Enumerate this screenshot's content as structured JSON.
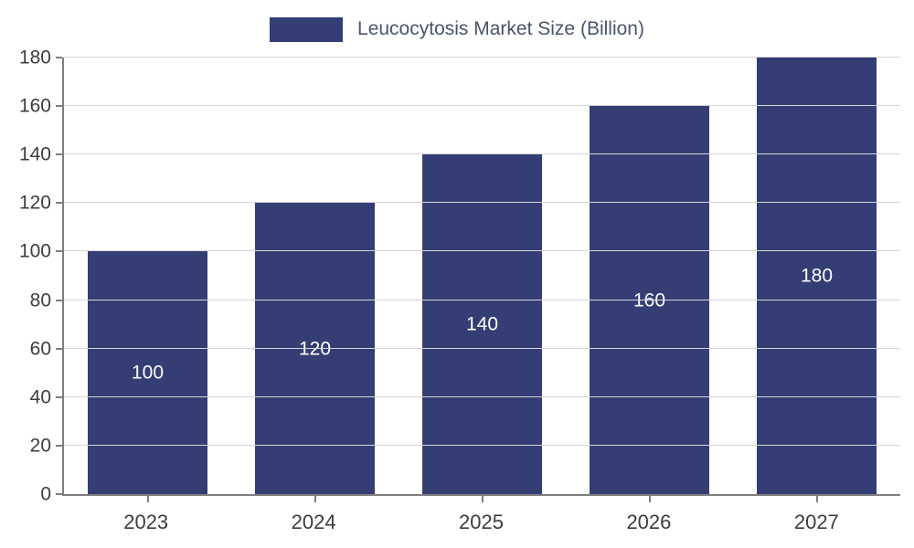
{
  "chart_data": {
    "type": "bar",
    "title": "Leucocytosis Market Size (Billion)",
    "categories": [
      "2023",
      "2024",
      "2025",
      "2026",
      "2027"
    ],
    "values": [
      100,
      120,
      140,
      160,
      180
    ],
    "value_labels": [
      "100",
      "120",
      "140",
      "160",
      "180"
    ],
    "xlabel": "",
    "ylabel": "",
    "ylim": [
      0,
      180
    ],
    "yticks": [
      0,
      20,
      40,
      60,
      80,
      100,
      120,
      140,
      160,
      180
    ],
    "grid": "horizontal",
    "legend_position": "top-center",
    "bar_color": "#343e75",
    "bar_label_color": "#ffffff",
    "gridline_color": "#d6d6d6",
    "axis_color": "#7f7f7f",
    "tick_label_color": "#3d3d3d",
    "legend_text_color": "#4a5568"
  },
  "legend": {
    "label": "Leucocytosis Market Size (Billion)"
  }
}
